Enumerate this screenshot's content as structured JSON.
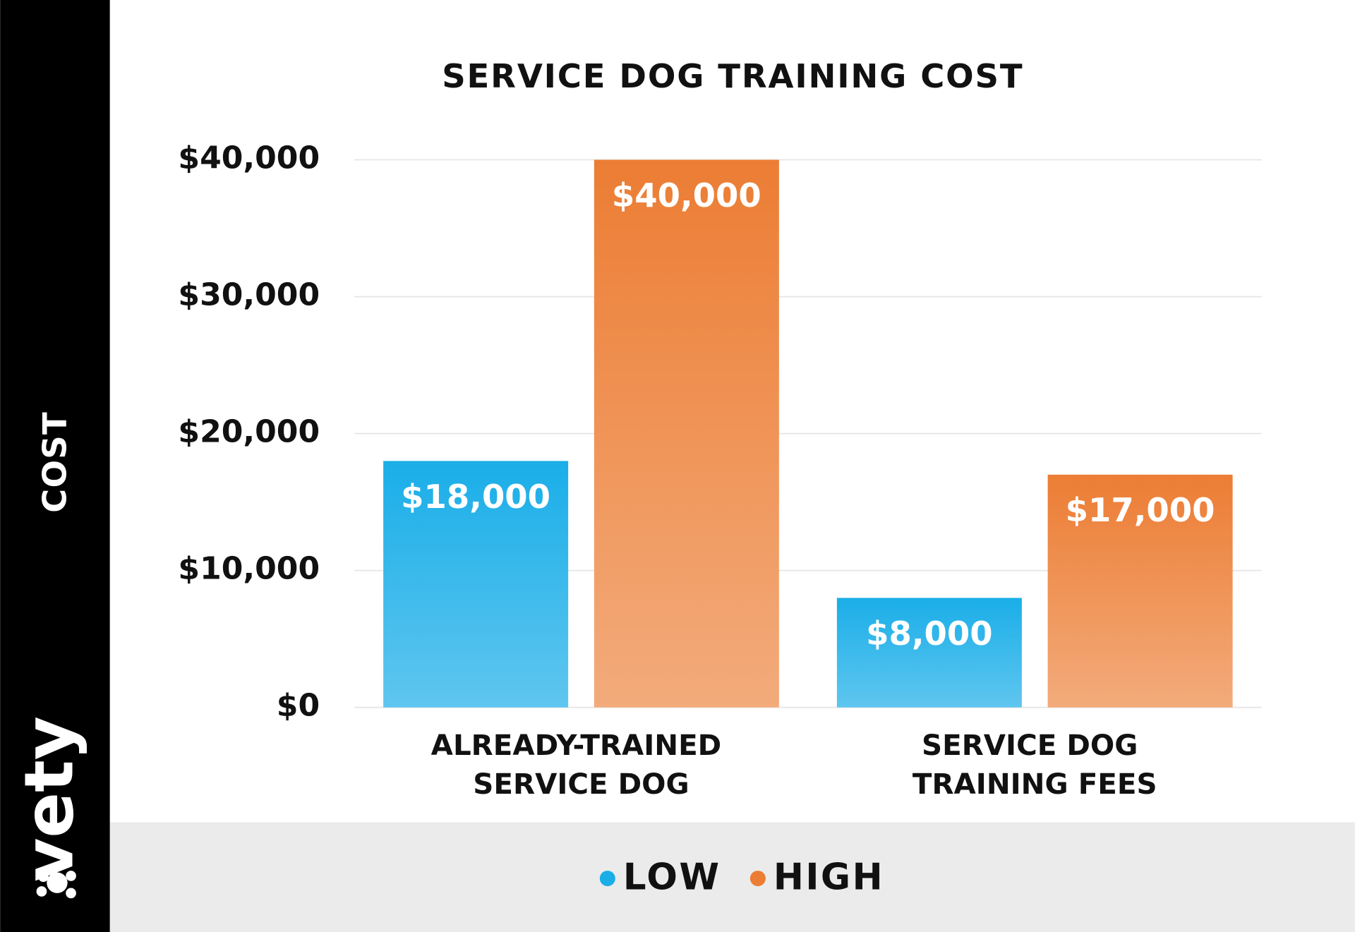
{
  "brand": "vety",
  "chart_data": {
    "type": "bar",
    "title": "SERVICE DOG TRAINING COST",
    "y_label": "COST",
    "categories": [
      "ALREADY-TRAINED SERVICE DOG",
      "SERVICE DOG TRAINING FEES"
    ],
    "series": [
      {
        "name": "LOW",
        "color": "#1aaee8",
        "values": [
          18000,
          8000
        ],
        "value_labels": [
          "$18,000",
          "$8,000"
        ]
      },
      {
        "name": "HIGH",
        "color": "#ec7d34",
        "values": [
          40000,
          17000
        ],
        "value_labels": [
          "$40,000",
          "$17,000"
        ]
      }
    ],
    "ylim": [
      0,
      40000
    ],
    "yticks": [
      {
        "value": 0,
        "label": "$0"
      },
      {
        "value": 10000,
        "label": "$10,000"
      },
      {
        "value": 20000,
        "label": "$20,000"
      },
      {
        "value": 30000,
        "label": "$30,000"
      },
      {
        "value": 40000,
        "label": "$40,000"
      }
    ],
    "grid": true,
    "legend": "bottom"
  }
}
